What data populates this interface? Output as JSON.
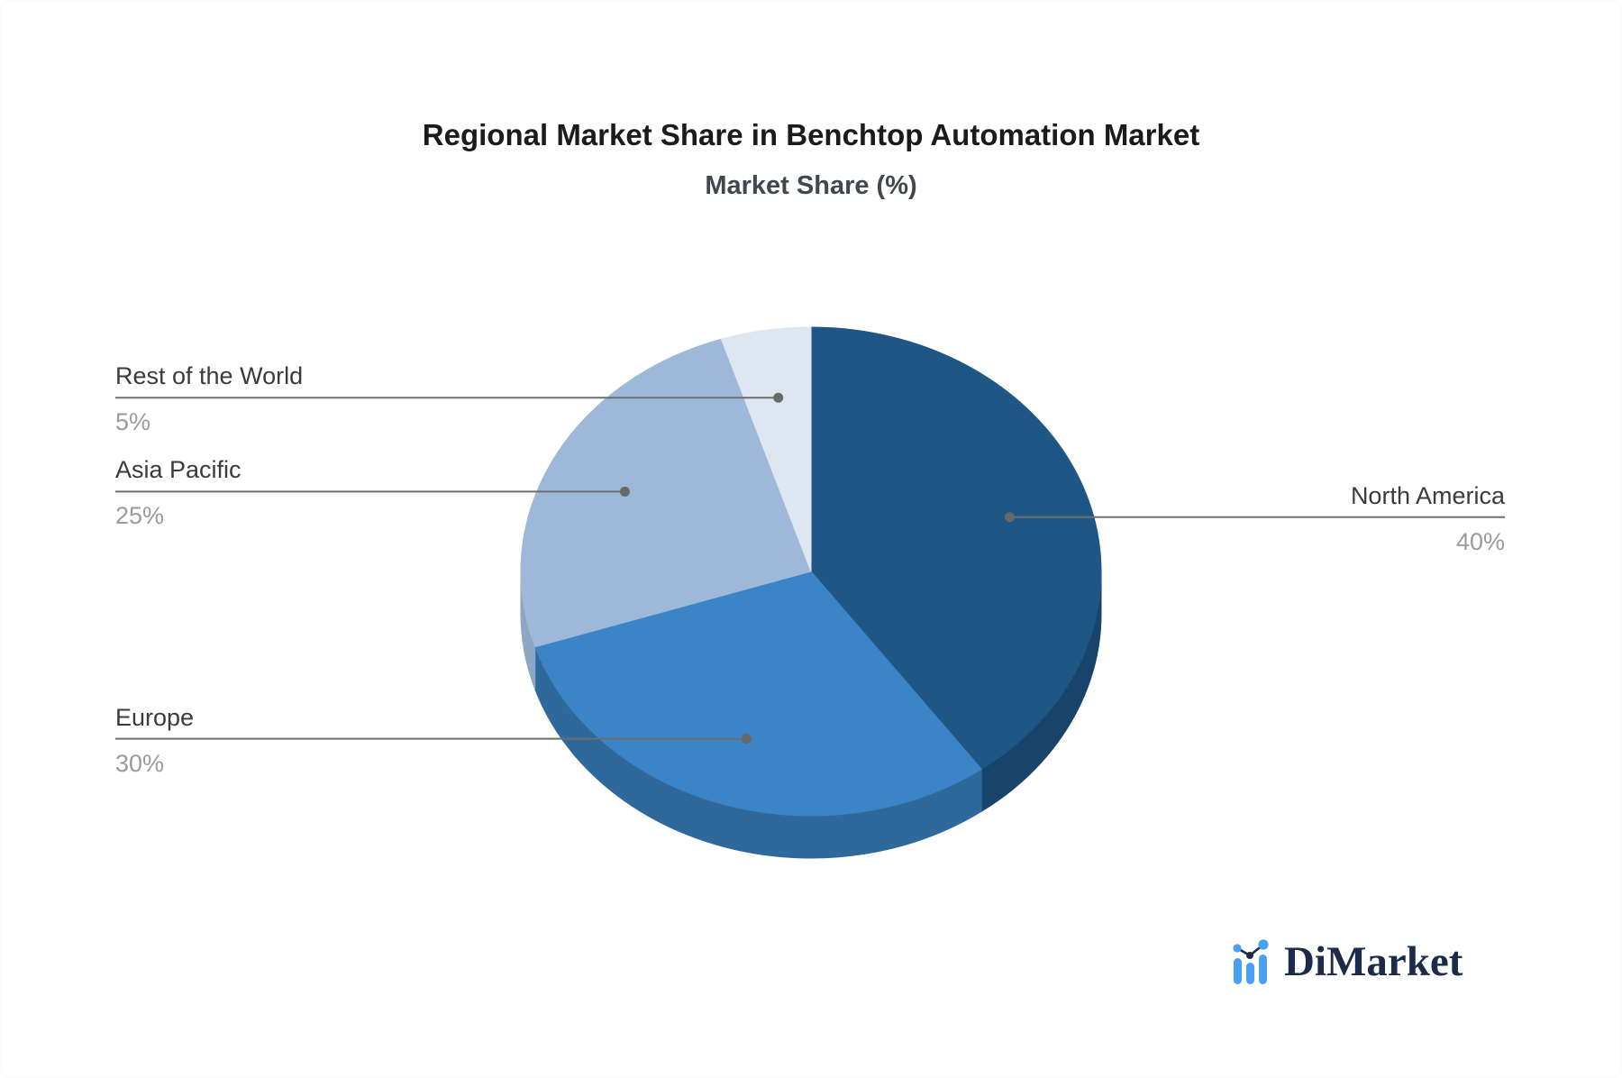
{
  "title": "Regional Market Share in Benchtop Automation Market",
  "subtitle": "Market Share (%)",
  "brand": {
    "name": "DiMarket",
    "icon": "bar-line-chart-icon",
    "text_color": "#1c2b4a",
    "icon_bar_color": "#4aa1f3",
    "icon_line_color": "#1c2b4a"
  },
  "chart_data": {
    "type": "pie",
    "title": "Regional Market Share in Benchtop Automation Market",
    "subtitle": "Market Share (%)",
    "unit": "%",
    "effect": "3d",
    "start_angle_deg": 0,
    "direction": "clockwise",
    "legend_position": "callout-labels",
    "categories": [
      "North America",
      "Europe",
      "Asia Pacific",
      "Rest of the World"
    ],
    "values": [
      40,
      30,
      25,
      5
    ],
    "slices": [
      {
        "label": "North America",
        "value": 40,
        "pct_label": "40%",
        "color": "#1e5786",
        "side_color": "#18436a",
        "label_side": "right"
      },
      {
        "label": "Europe",
        "value": 30,
        "pct_label": "30%",
        "color": "#3b84c6",
        "side_color": "#2f689a",
        "label_side": "left"
      },
      {
        "label": "Asia Pacific",
        "value": 25,
        "pct_label": "25%",
        "color": "#9db8d8",
        "side_color": "#8ba7c5",
        "label_side": "left"
      },
      {
        "label": "Rest of the World",
        "value": 5,
        "pct_label": "5%",
        "color": "#dee6f1",
        "side_color": "#c9d5e5",
        "label_side": "left"
      }
    ],
    "leader_line_color": "#6e6e6e",
    "leader_dot_color": "#686868",
    "label_color": "#3b3b3b",
    "pct_color": "#9b9b9b"
  }
}
